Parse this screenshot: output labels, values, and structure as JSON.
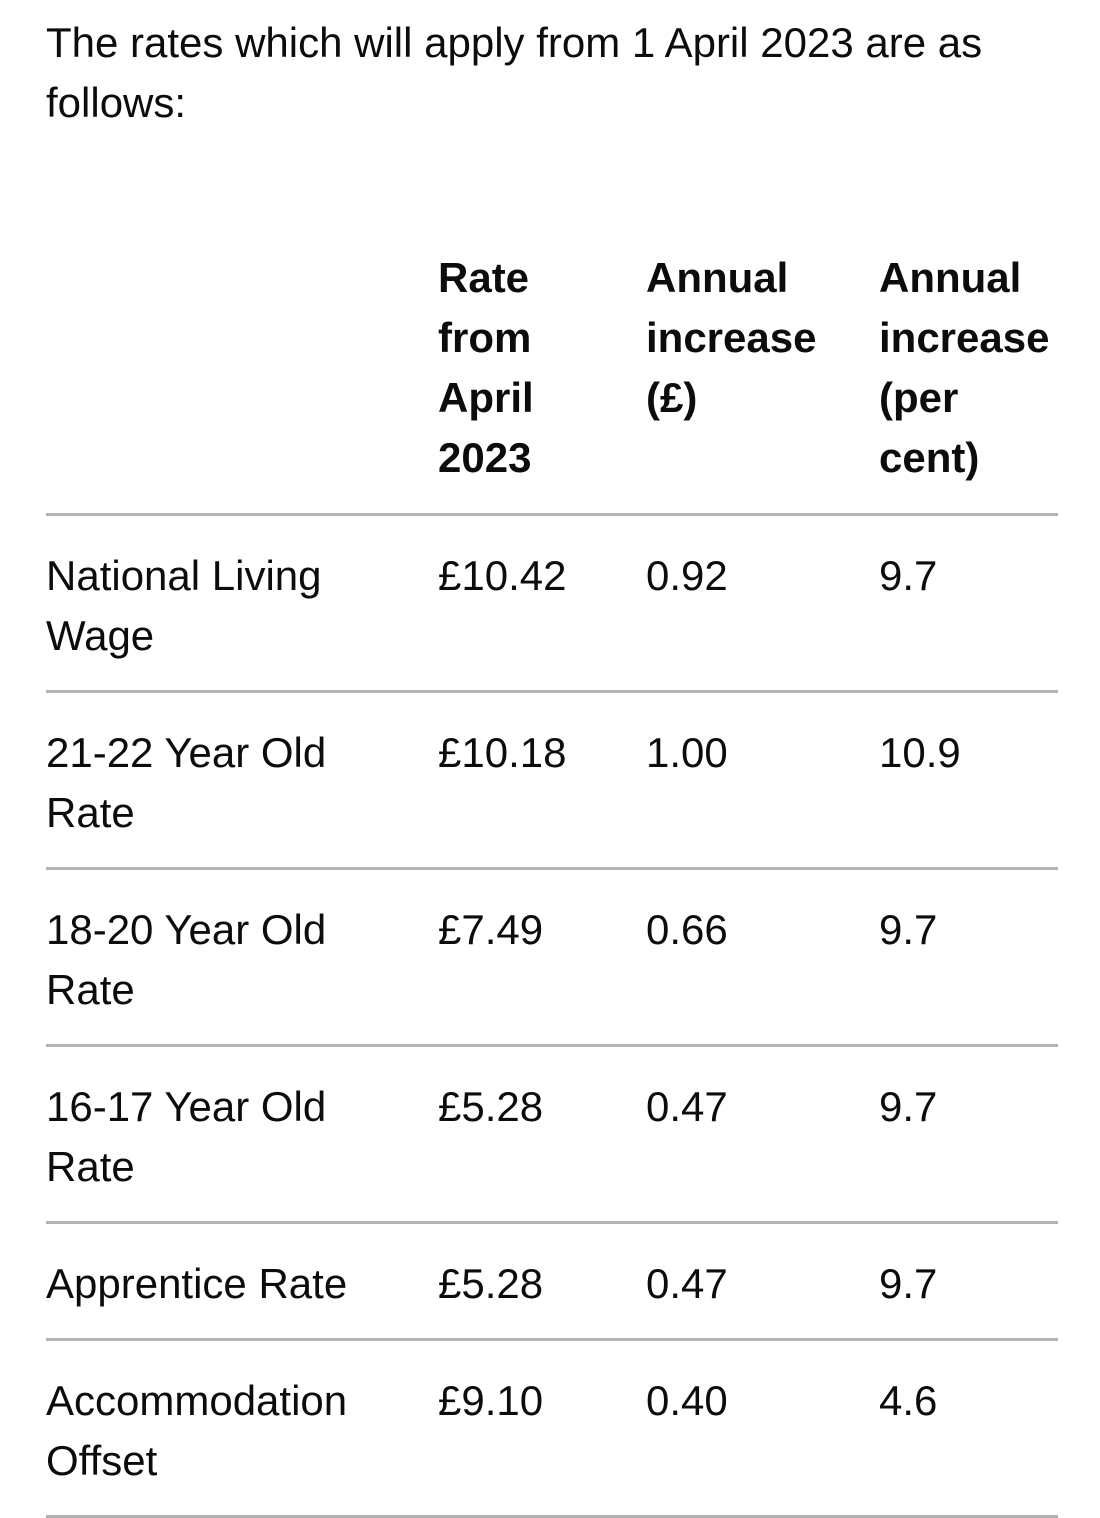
{
  "intro": "The rates which will apply from 1 April 2023 are as follows:",
  "colors": {
    "text": "#0b0c0c",
    "row_border": "#b1b4b6",
    "background": "#ffffff"
  },
  "table": {
    "headers": {
      "label": "",
      "rate": "Rate from April 2023",
      "increase_gbp": "Annual increase (£)",
      "increase_pct": "Annual increase (per cent)"
    },
    "rows": [
      {
        "label": "National Living Wage",
        "rate": "£10.42",
        "increase_gbp": "0.92",
        "increase_pct": "9.7"
      },
      {
        "label": "21-22 Year Old Rate",
        "rate": "£10.18",
        "increase_gbp": "1.00",
        "increase_pct": "10.9"
      },
      {
        "label": "18-20 Year Old Rate",
        "rate": "£7.49",
        "increase_gbp": "0.66",
        "increase_pct": "9.7"
      },
      {
        "label": "16-17 Year Old Rate",
        "rate": "£5.28",
        "increase_gbp": "0.47",
        "increase_pct": "9.7"
      },
      {
        "label": "Apprentice Rate",
        "rate": "£5.28",
        "increase_gbp": "0.47",
        "increase_pct": "9.7"
      },
      {
        "label": "Accommodation Offset",
        "rate": "£9.10",
        "increase_gbp": "0.40",
        "increase_pct": "4.6"
      }
    ]
  }
}
